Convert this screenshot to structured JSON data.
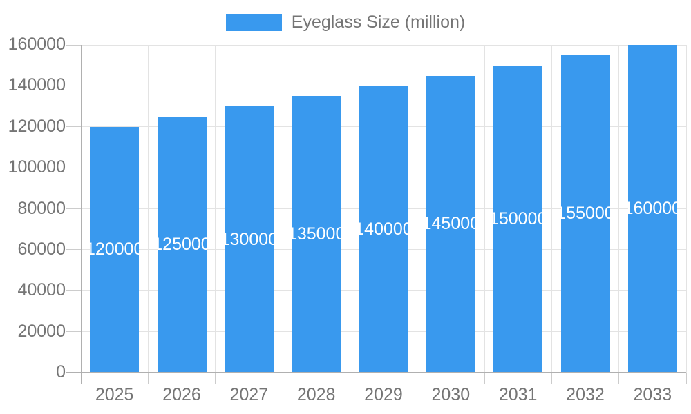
{
  "legend": {
    "label": "Eyeglass Size (million)"
  },
  "chart_data": {
    "type": "bar",
    "title": "",
    "series_name": "Eyeglass Size (million)",
    "categories": [
      "2025",
      "2026",
      "2027",
      "2028",
      "2029",
      "2030",
      "2031",
      "2032",
      "2033"
    ],
    "values": [
      120000,
      125000,
      130000,
      135000,
      140000,
      145000,
      150000,
      155000,
      160000
    ],
    "bar_labels": [
      "120000",
      "125000",
      "130000",
      "135000",
      "140000",
      "145000",
      "150000",
      "155000",
      "160000"
    ],
    "xlabel": "",
    "ylabel": "",
    "ylim": [
      0,
      160000
    ],
    "ytick_step": 20000,
    "ytick_labels": [
      "0",
      "20000",
      "40000",
      "60000",
      "80000",
      "100000",
      "120000",
      "140000",
      "160000"
    ],
    "grid": true,
    "legend_position": "top",
    "colors": {
      "bar": "#3999EE",
      "bar_label": "#ffffff",
      "axis_text": "#757575",
      "grid_line": "#e3e3e3",
      "axis_line": "#b0b0b0",
      "tick_line": "#cccccc"
    }
  }
}
